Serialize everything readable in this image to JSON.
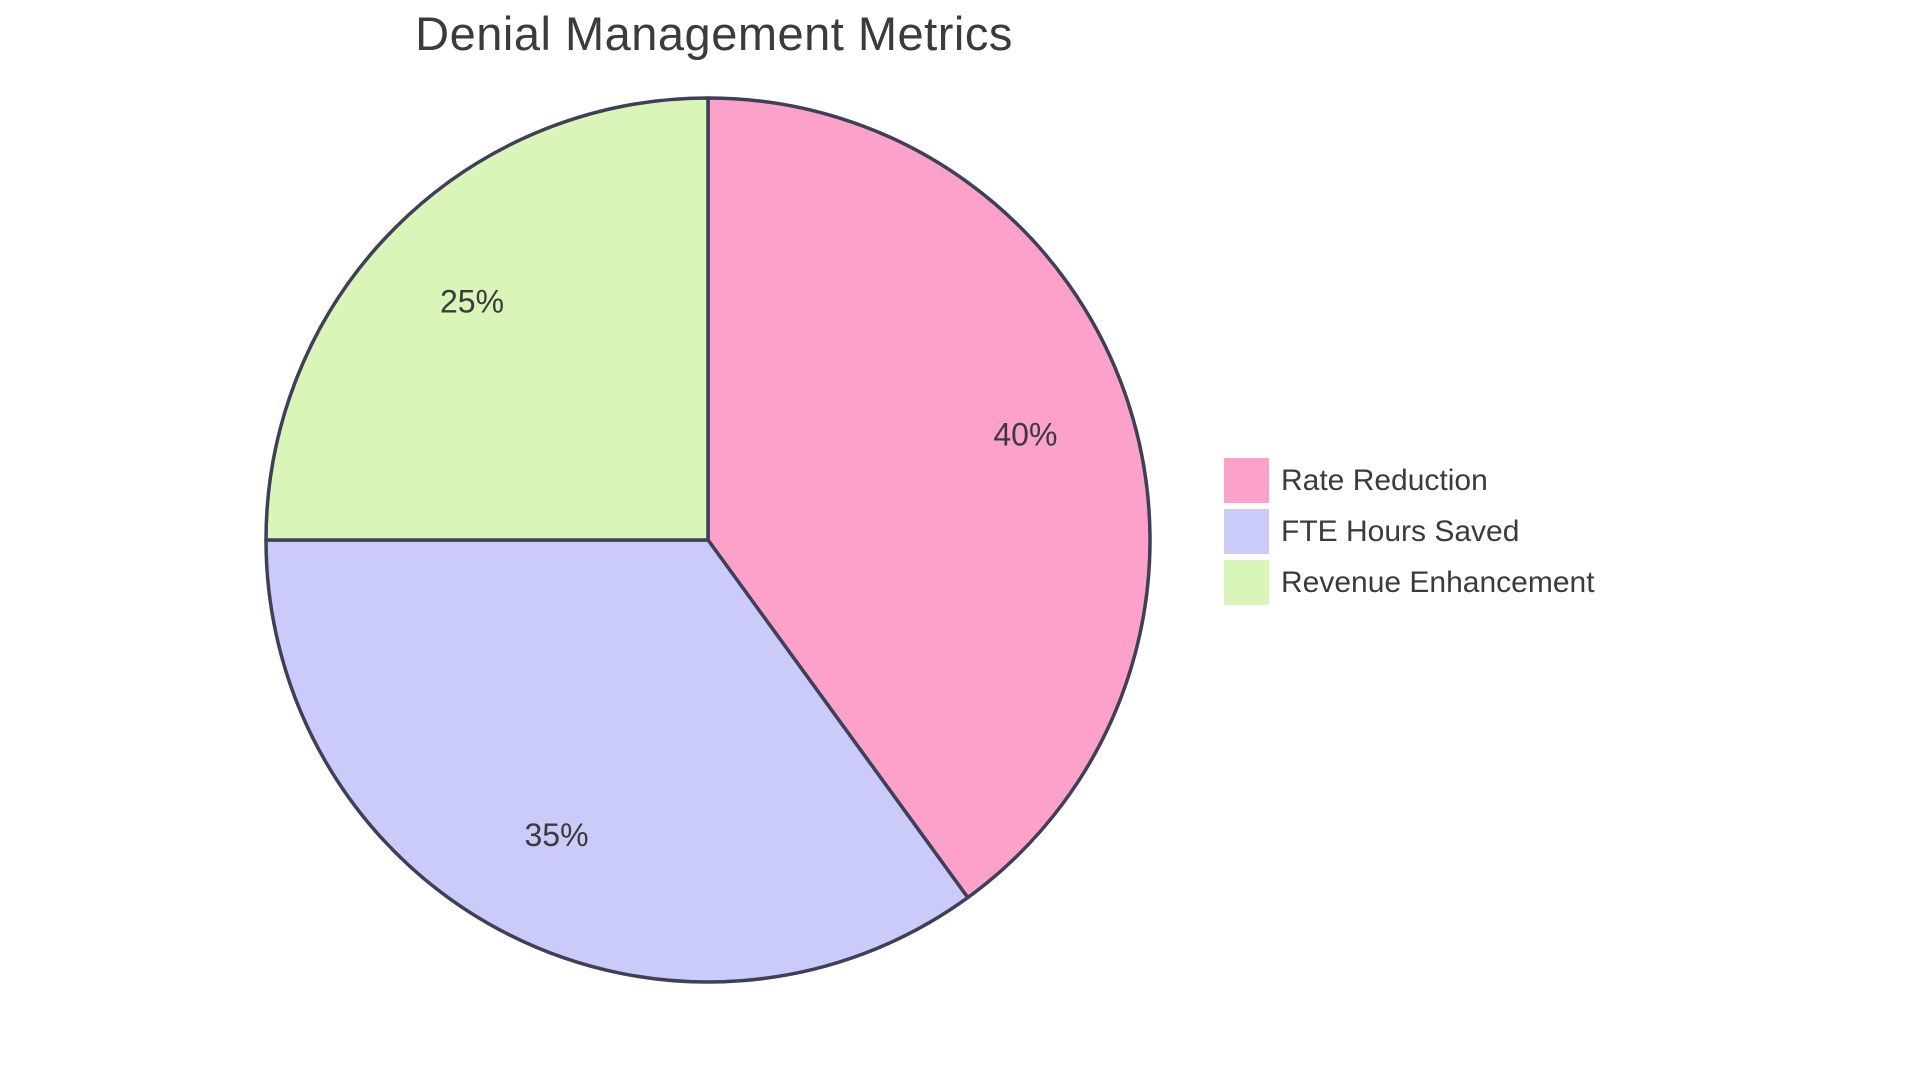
{
  "chart_data": {
    "type": "pie",
    "title": "Denial Management Metrics",
    "slices": [
      {
        "label": "Rate Reduction",
        "value": 40,
        "pct_label": "40%",
        "color": "#FCA1C9"
      },
      {
        "label": "FTE Hours Saved",
        "value": 35,
        "pct_label": "35%",
        "color": "#CACBF9"
      },
      {
        "label": "Revenue Enhancement",
        "value": 25,
        "pct_label": "25%",
        "color": "#D9F5B8"
      }
    ],
    "start_angle": "12-oclock",
    "direction": "clockwise",
    "stroke_color": "#3F3F58",
    "label_color": "#3B3B3B",
    "legend_position": "right",
    "legend_entries": [
      "Rate Reduction",
      "FTE Hours Saved",
      "Revenue Enhancement"
    ]
  }
}
